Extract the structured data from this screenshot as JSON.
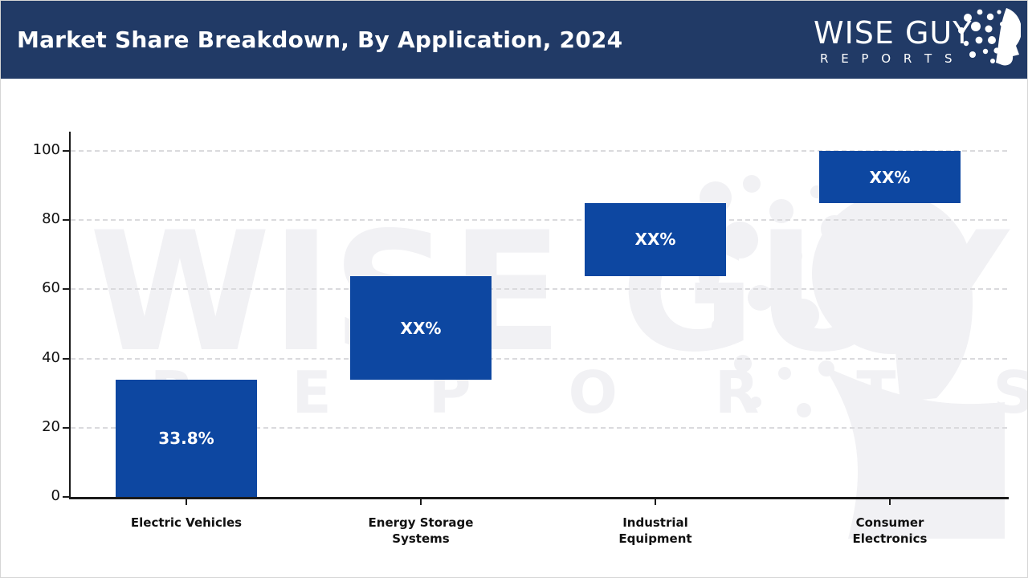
{
  "header": {
    "title": "Market Share Breakdown, By Application, 2024",
    "background": "#213a66",
    "logo": {
      "line1": "WISE GUY",
      "line2": "R E P O R T S"
    }
  },
  "watermark": {
    "line1": "WISE GUY",
    "line2": "R E P O R T S"
  },
  "chart_data": {
    "type": "bar",
    "subtype": "waterfall",
    "title": "Market Share Breakdown, By Application, 2024",
    "categories": [
      "Electric Vehicles",
      "Energy Storage\nSystems",
      "Industrial\nEquipment",
      "Consumer\nElectronics"
    ],
    "segments": [
      {
        "category": "Electric Vehicles",
        "from": 0,
        "to": 33.8,
        "label": "33.8%"
      },
      {
        "category": "Energy Storage Systems",
        "from": 33.8,
        "to": 63.9,
        "label": "XX%"
      },
      {
        "category": "Industrial Equipment",
        "from": 63.9,
        "to": 84.9,
        "label": "XX%"
      },
      {
        "category": "Consumer Electronics",
        "from": 84.9,
        "to": 100,
        "label": "XX%"
      }
    ],
    "yticks": [
      0,
      20,
      40,
      60,
      80,
      100
    ],
    "ylim": [
      0,
      105.6
    ],
    "grid": "dashed-horizontal",
    "legend": "none",
    "bar_color": "#0d47a1",
    "bar_label_color": "#ffffff",
    "axis_color": "#1a1a1a"
  }
}
